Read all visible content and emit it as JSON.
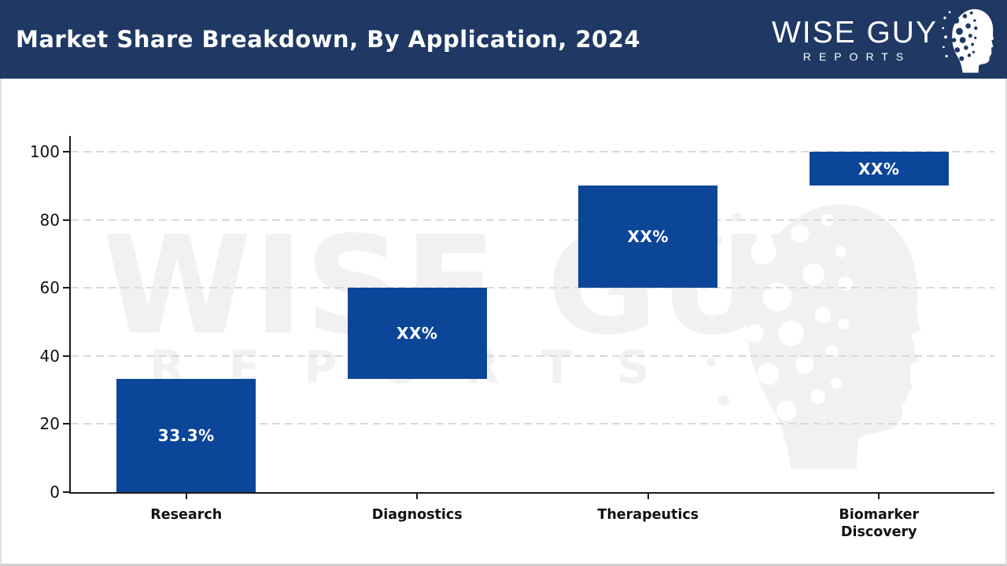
{
  "header": {
    "title": "Market Share Breakdown, By Application, 2024",
    "bg_color": "#1f3864",
    "logo_line1": "WISE GUY",
    "logo_line2": "REPORTS"
  },
  "watermark": {
    "line1": "WISE GUY",
    "line2": "REPORTS"
  },
  "chart_data": {
    "type": "bar",
    "subtype": "waterfall",
    "title": "Market Share Breakdown, By Application, 2024",
    "categories": [
      "Research",
      "Diagnostics",
      "Therapeutics",
      "Biomarker Discovery"
    ],
    "segments": [
      {
        "category": "Research",
        "start": 0,
        "end": 33.3,
        "label": "33.3%"
      },
      {
        "category": "Diagnostics",
        "start": 33.3,
        "end": 60,
        "label": "XX%"
      },
      {
        "category": "Therapeutics",
        "start": 60,
        "end": 90,
        "label": "XX%"
      },
      {
        "category": "Biomarker Discovery",
        "start": 90,
        "end": 100,
        "label": "XX%"
      }
    ],
    "ylim": [
      0,
      100
    ],
    "yticks": [
      0,
      20,
      40,
      60,
      80,
      100
    ],
    "grid": true,
    "gridline_style": "dashed",
    "gridline_color": "#d9d9d9",
    "axis_color": "#1a1a1a",
    "bar_color": "#0c4699",
    "bar_label_color": "#ffffff",
    "legend": "none"
  }
}
